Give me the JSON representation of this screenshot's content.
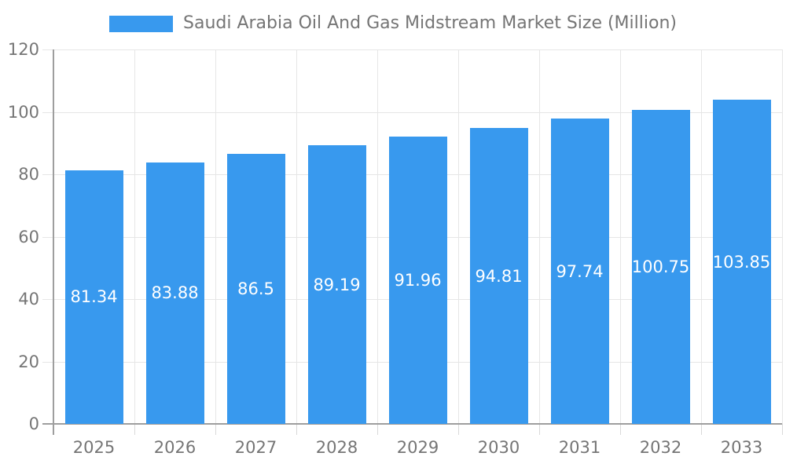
{
  "chart_data": {
    "type": "bar",
    "title": "Saudi Arabia Oil And Gas Midstream Market Size (Million)",
    "legend": {
      "position": "top",
      "series_label": "Saudi Arabia Oil And Gas Midstream Market Size (Million)"
    },
    "categories": [
      "2025",
      "2026",
      "2027",
      "2028",
      "2029",
      "2030",
      "2031",
      "2032",
      "2033"
    ],
    "values": [
      81.34,
      83.88,
      86.5,
      89.19,
      91.96,
      94.81,
      97.74,
      100.75,
      103.85
    ],
    "value_labels": [
      "81.34",
      "83.88",
      "86.5",
      "89.19",
      "91.96",
      "94.81",
      "97.74",
      "100.75",
      "103.85"
    ],
    "xlabel": "",
    "ylabel": "",
    "ylim": [
      0,
      120
    ],
    "yticks": [
      0,
      20,
      40,
      60,
      80,
      100,
      120
    ],
    "grid": true,
    "colors": {
      "bar": "#3899ee",
      "bar_value_text": "#ffffff",
      "axis_text": "#757575",
      "title_text": "#757575",
      "gridline": "#e6e6e6",
      "axis_line": "#9e9e9e",
      "background": "#ffffff"
    }
  }
}
